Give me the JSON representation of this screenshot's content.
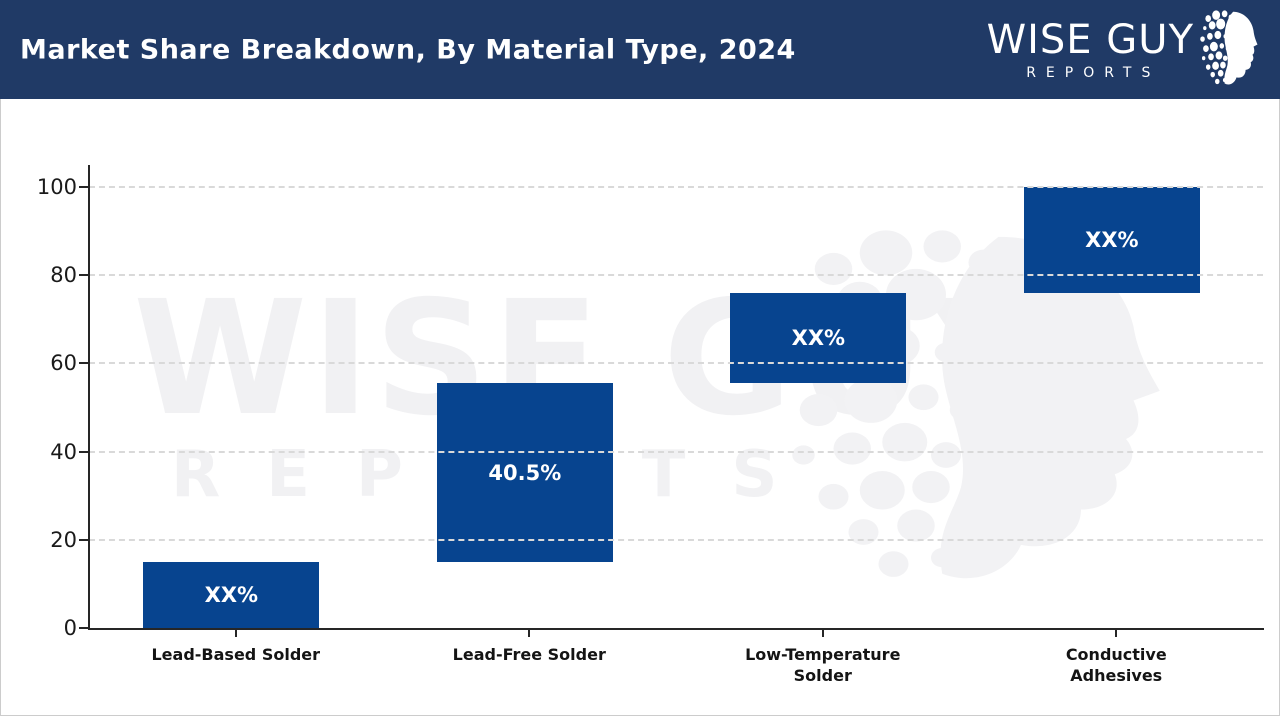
{
  "header": {
    "title": "Market Share Breakdown, By Material Type, 2024",
    "bg_color": "#203a66"
  },
  "logo": {
    "name_line": "WISE GUY",
    "sub_line": "REPORTS",
    "face_icon": "dotted-face-profile"
  },
  "watermark": {
    "name_line": "WISE GUY",
    "sub_line": "REPORTS",
    "face_icon": "dotted-face-profile"
  },
  "chart_data": {
    "type": "bar",
    "subtype": "floating-waterfall",
    "title": "Market Share Breakdown, By Material Type, 2024",
    "categories": [
      "Lead-Based Solder",
      "Lead-Free Solder",
      "Low-Temperature\nSolder",
      "Conductive\nAdhesives"
    ],
    "series": [
      {
        "category": "Lead-Based Solder",
        "start": 0,
        "end": 15,
        "value": 15,
        "label": "XX%"
      },
      {
        "category": "Lead-Free Solder",
        "start": 15,
        "end": 55.5,
        "value": 40.5,
        "label": "40.5%"
      },
      {
        "category": "Low-Temperature Solder",
        "start": 55.5,
        "end": 76,
        "value": 20.5,
        "label": "XX%"
      },
      {
        "category": "Conductive Adhesives",
        "start": 76,
        "end": 100,
        "value": 24,
        "label": "XX%"
      }
    ],
    "yticks": [
      0,
      20,
      40,
      60,
      80,
      100
    ],
    "ylim": [
      0,
      100
    ],
    "xlabel": "",
    "ylabel": "",
    "grid": "horizontal dashed, drawn above bars",
    "legend": "none",
    "bar_color": "#07448f",
    "bar_label_color": "#ffffff",
    "grid_color": "#d9d9d9",
    "axis_color": "#262626"
  }
}
